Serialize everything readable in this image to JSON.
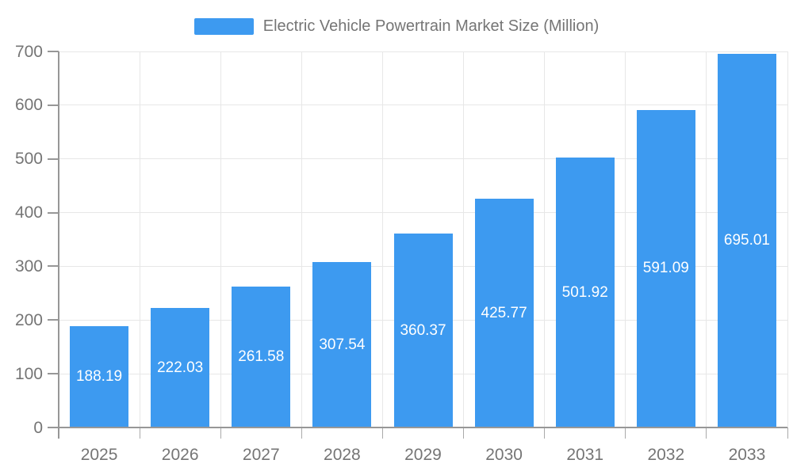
{
  "legend": {
    "label": "Electric Vehicle Powertrain Market Size (Million)"
  },
  "chart_data": {
    "type": "bar",
    "title": "Electric Vehicle Powertrain Market Size (Million)",
    "categories": [
      "2025",
      "2026",
      "2027",
      "2028",
      "2029",
      "2030",
      "2031",
      "2032",
      "2033"
    ],
    "values": [
      188.19,
      222.03,
      261.58,
      307.54,
      360.37,
      425.77,
      501.92,
      591.09,
      695.01
    ],
    "value_labels": [
      "188.19",
      "222.03",
      "261.58",
      "307.54",
      "360.37",
      "425.77",
      "501.92",
      "591.09",
      "695.01"
    ],
    "xlabel": "",
    "ylabel": "",
    "ylim": [
      0,
      700
    ],
    "ytick_step": 100,
    "grid": true,
    "legend_position": "top-center",
    "colors": {
      "bar": "#3d9af0",
      "bar_label": "#ffffff",
      "axis_text": "#757575",
      "axis_line": "#979797",
      "gridline": "#e7e7e7"
    }
  }
}
